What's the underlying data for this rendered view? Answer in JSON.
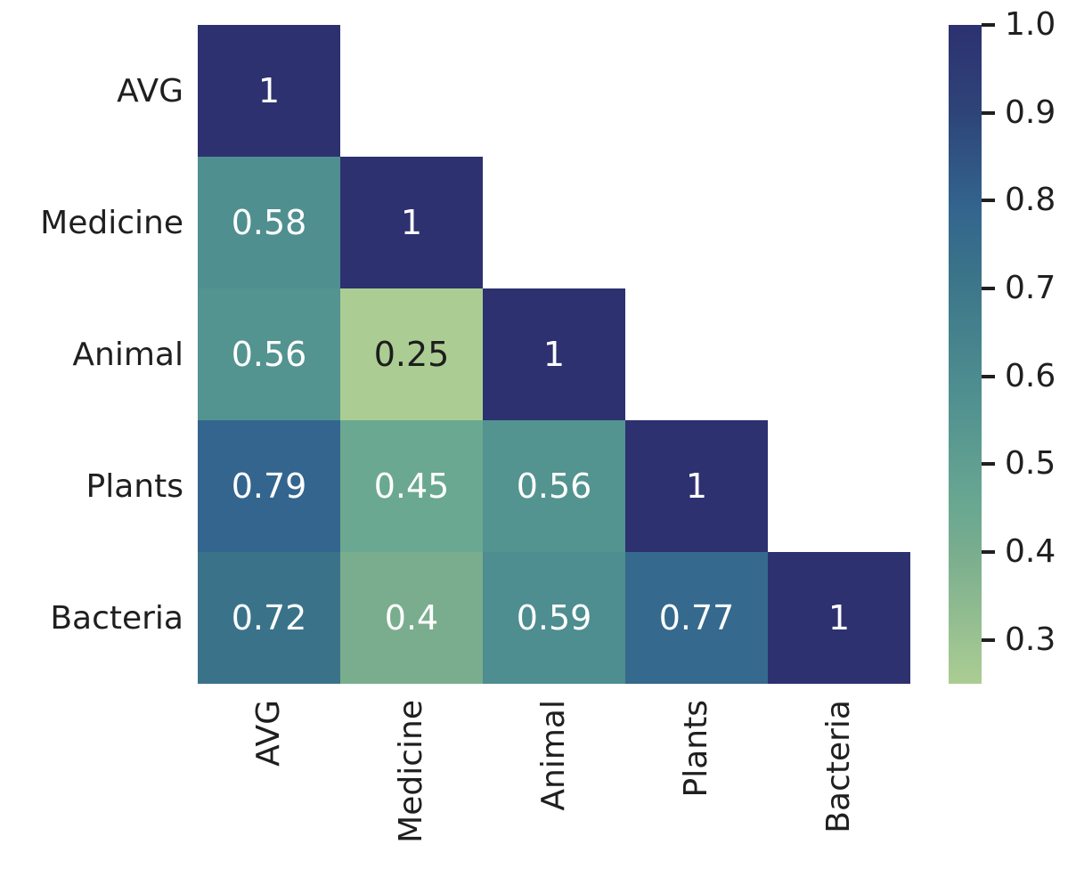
{
  "chart_data": {
    "type": "heatmap",
    "shape": "lower-triangle",
    "title": "",
    "xlabel": "",
    "ylabel": "",
    "categories": [
      "AVG",
      "Medicine",
      "Animal",
      "Plants",
      "Bacteria"
    ],
    "matrix": [
      [
        1,
        null,
        null,
        null,
        null
      ],
      [
        0.58,
        1,
        null,
        null,
        null
      ],
      [
        0.56,
        0.25,
        1,
        null,
        null
      ],
      [
        0.79,
        0.45,
        0.56,
        1,
        null
      ],
      [
        0.72,
        0.4,
        0.59,
        0.77,
        1
      ]
    ],
    "cell_labels": [
      [
        "1"
      ],
      [
        "0.58",
        "1"
      ],
      [
        "0.56",
        "0.25",
        "1"
      ],
      [
        "0.79",
        "0.45",
        "0.56",
        "1"
      ],
      [
        "0.72",
        "0.4",
        "0.59",
        "0.77",
        "1"
      ]
    ],
    "vmin": 0.25,
    "vmax": 1.0,
    "grid": false,
    "legend_position": "colorbar-right",
    "colorbar": {
      "tick_labels": [
        "1.0",
        "0.9",
        "0.8",
        "0.7",
        "0.6",
        "0.5",
        "0.4",
        "0.3"
      ],
      "tick_values": [
        1.0,
        0.9,
        0.8,
        0.7,
        0.6,
        0.5,
        0.4,
        0.3
      ]
    },
    "colormap": {
      "name": "crest-like",
      "stops": [
        [
          0.25,
          "#abcd93"
        ],
        [
          0.4,
          "#79ad8e"
        ],
        [
          0.45,
          "#6aa891"
        ],
        [
          0.58,
          "#4f8f90"
        ],
        [
          0.72,
          "#3a7389"
        ],
        [
          0.79,
          "#33658e"
        ],
        [
          0.9,
          "#2e4479"
        ],
        [
          1.0,
          "#2d3170"
        ]
      ]
    },
    "annotation_text_light": "#ffffff",
    "annotation_text_dark": "#1d1d1d",
    "tick_color": "#1f1f1f"
  }
}
